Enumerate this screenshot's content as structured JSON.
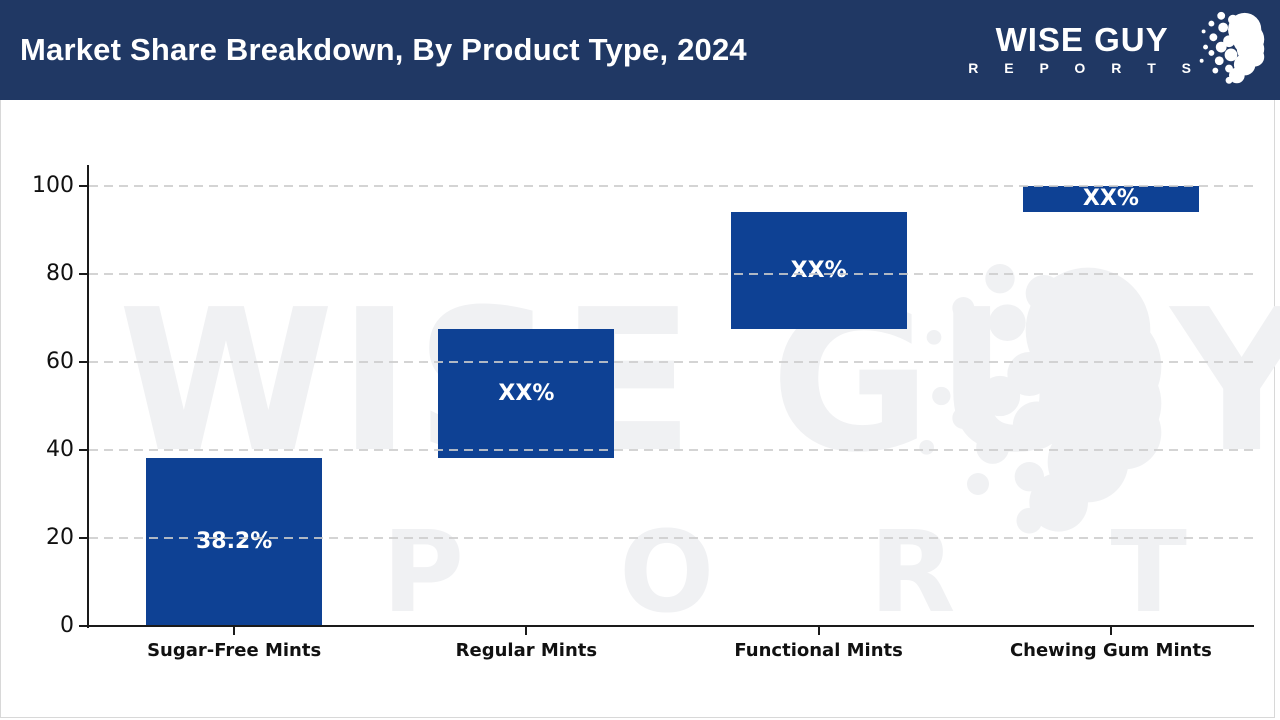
{
  "header": {
    "title": "Market Share Breakdown, By Product Type, 2024",
    "logo": {
      "line1": "WISE GUY",
      "line2": "R E P O R T S"
    }
  },
  "watermark": {
    "line1": "WISE GU Y",
    "line2": "P O R T S"
  },
  "colors": {
    "header_bg": "#203864",
    "bar": "#0e4194",
    "bar_label": "#ffffff",
    "grid": "#d2d2d2",
    "axis": "#1a1a1a",
    "watermark": "#f0f1f3"
  },
  "chart_data": {
    "type": "bar",
    "subtype": "floating-waterfall",
    "title": "Market Share Breakdown, By Product Type, 2024",
    "categories": [
      "Sugar-Free Mints",
      "Regular Mints",
      "Functional Mints",
      "Chewing Gum Mints"
    ],
    "segments": [
      {
        "category": "Sugar-Free Mints",
        "start": 0,
        "end": 38.2,
        "label": "38.2%"
      },
      {
        "category": "Regular Mints",
        "start": 38.2,
        "end": 67.5,
        "label": "XX%"
      },
      {
        "category": "Functional Mints",
        "start": 67.5,
        "end": 94.1,
        "label": "XX%"
      },
      {
        "category": "Chewing Gum Mints",
        "start": 94.1,
        "end": 100,
        "label": "XX%"
      }
    ],
    "xlabel": "",
    "ylabel": "",
    "yticks": [
      0,
      20,
      40,
      60,
      80,
      100
    ],
    "ylim": [
      0,
      104.8
    ],
    "grid": {
      "horizontal": true,
      "style": "dashed",
      "drawn_over_bars": true
    },
    "legend": "none"
  }
}
